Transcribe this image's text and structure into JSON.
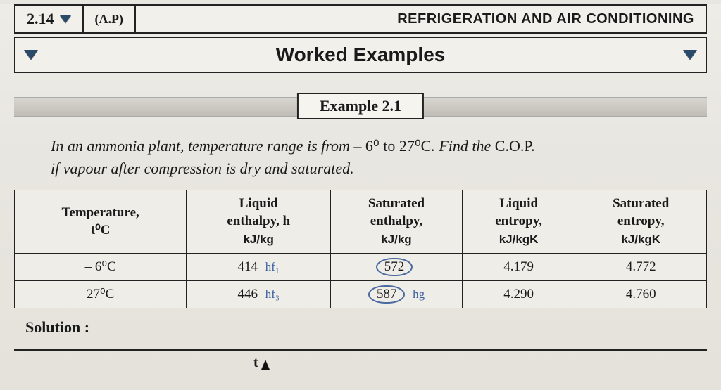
{
  "header": {
    "section_number": "2.14",
    "ap_label": "(A.P)",
    "book_title": "REFRIGERATION AND AIR CONDITIONING"
  },
  "banner": {
    "title": "Worked Examples"
  },
  "example": {
    "label": "Example 2.1"
  },
  "problem": {
    "line1_a": "In an ammonia plant, temperature range is from ",
    "line1_b": "– 6⁰ to 27⁰C",
    "line1_c": ". Find the ",
    "line1_d": "C.O.P.",
    "line2": "if vapour after compression is dry and saturated."
  },
  "table": {
    "columns": [
      {
        "l1": "Temperature,",
        "l2": "t⁰C",
        "unit": ""
      },
      {
        "l1": "Liquid",
        "l2": "enthalpy, h",
        "unit": "kJ/kg"
      },
      {
        "l1": "Saturated",
        "l2": "enthalpy,",
        "unit": "kJ/kg"
      },
      {
        "l1": "Liquid",
        "l2": "entropy,",
        "unit": "kJ/kgK"
      },
      {
        "l1": "Saturated",
        "l2": "entropy,",
        "unit": "kJ/kgK"
      }
    ],
    "rows": [
      {
        "temp": "– 6⁰C",
        "h_liq": "414",
        "h_liq_anno": "hf₁",
        "h_sat": "572",
        "h_sat_anno": "",
        "s_liq": "4.179",
        "s_sat": "4.772"
      },
      {
        "temp": "27⁰C",
        "h_liq": "446",
        "h_liq_anno": "hf₃",
        "h_sat": "587",
        "h_sat_anno": "hg",
        "s_liq": "4.290",
        "s_sat": "4.760"
      }
    ]
  },
  "solution_label": "Solution :",
  "axis_label": "t"
}
